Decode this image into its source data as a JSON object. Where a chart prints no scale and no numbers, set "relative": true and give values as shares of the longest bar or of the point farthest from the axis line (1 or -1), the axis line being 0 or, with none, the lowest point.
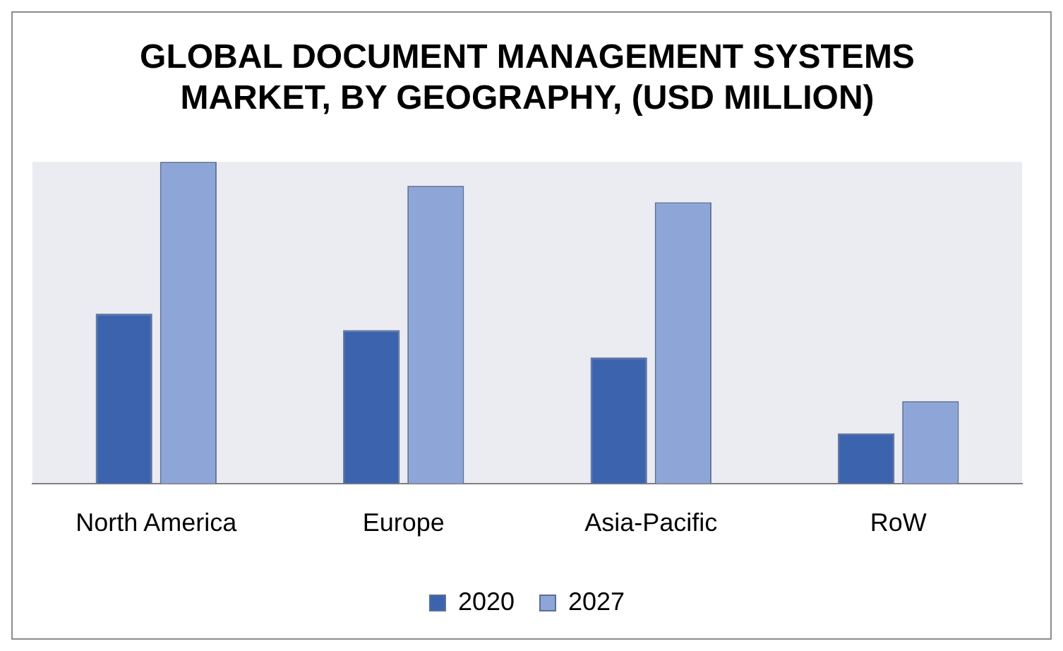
{
  "chart_data": {
    "type": "bar",
    "title": "GLOBAL DOCUMENT MANAGEMENT SYSTEMS MARKET, BY GEOGRAPHY, (USD MILLION)",
    "relative": true,
    "categories": [
      "North America",
      "Europe",
      "Asia-Pacific",
      "RoW"
    ],
    "series": [
      {
        "name": "2020",
        "color": "#3c63ae",
        "values": [
          0.528,
          0.477,
          0.392,
          0.156
        ]
      },
      {
        "name": "2027",
        "color": "#8ea5d8",
        "values": [
          1,
          0.925,
          0.874,
          0.256
        ]
      }
    ],
    "legend": "bottom",
    "grid": false
  }
}
